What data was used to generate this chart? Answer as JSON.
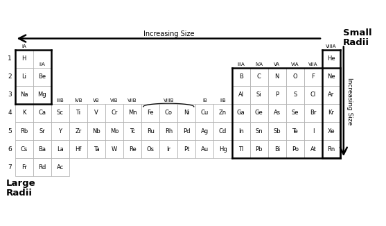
{
  "bg_color": "#ffffff",
  "cell_color": "#ffffff",
  "cell_border_color": "#aaaaaa",
  "text_color": "#000000",
  "fig_width": 5.57,
  "fig_height": 3.26,
  "rows": [
    {
      "row": 1,
      "elements": [
        {
          "sym": "H",
          "col": 1
        },
        {
          "sym": "He",
          "col": 18
        }
      ]
    },
    {
      "row": 2,
      "elements": [
        {
          "sym": "Li",
          "col": 1
        },
        {
          "sym": "Be",
          "col": 2
        },
        {
          "sym": "B",
          "col": 13
        },
        {
          "sym": "C",
          "col": 14
        },
        {
          "sym": "N",
          "col": 15
        },
        {
          "sym": "O",
          "col": 16
        },
        {
          "sym": "F",
          "col": 17
        },
        {
          "sym": "Ne",
          "col": 18
        }
      ]
    },
    {
      "row": 3,
      "elements": [
        {
          "sym": "Na",
          "col": 1
        },
        {
          "sym": "Mg",
          "col": 2
        },
        {
          "sym": "Al",
          "col": 13
        },
        {
          "sym": "Si",
          "col": 14
        },
        {
          "sym": "P",
          "col": 15
        },
        {
          "sym": "S",
          "col": 16
        },
        {
          "sym": "Cl",
          "col": 17
        },
        {
          "sym": "Ar",
          "col": 18
        }
      ]
    },
    {
      "row": 4,
      "elements": [
        {
          "sym": "K",
          "col": 1
        },
        {
          "sym": "Ca",
          "col": 2
        },
        {
          "sym": "Sc",
          "col": 3
        },
        {
          "sym": "Ti",
          "col": 4
        },
        {
          "sym": "V",
          "col": 5
        },
        {
          "sym": "Cr",
          "col": 6
        },
        {
          "sym": "Mn",
          "col": 7
        },
        {
          "sym": "Fe",
          "col": 8
        },
        {
          "sym": "Co",
          "col": 9
        },
        {
          "sym": "Ni",
          "col": 10
        },
        {
          "sym": "Cu",
          "col": 11
        },
        {
          "sym": "Zn",
          "col": 12
        },
        {
          "sym": "Ga",
          "col": 13
        },
        {
          "sym": "Ge",
          "col": 14
        },
        {
          "sym": "As",
          "col": 15
        },
        {
          "sym": "Se",
          "col": 16
        },
        {
          "sym": "Br",
          "col": 17
        },
        {
          "sym": "Kr",
          "col": 18
        }
      ]
    },
    {
      "row": 5,
      "elements": [
        {
          "sym": "Rb",
          "col": 1
        },
        {
          "sym": "Sr",
          "col": 2
        },
        {
          "sym": "Y",
          "col": 3
        },
        {
          "sym": "Zr",
          "col": 4
        },
        {
          "sym": "Nb",
          "col": 5
        },
        {
          "sym": "Mo",
          "col": 6
        },
        {
          "sym": "Tc",
          "col": 7
        },
        {
          "sym": "Ru",
          "col": 8
        },
        {
          "sym": "Rh",
          "col": 9
        },
        {
          "sym": "Pd",
          "col": 10
        },
        {
          "sym": "Ag",
          "col": 11
        },
        {
          "sym": "Cd",
          "col": 12
        },
        {
          "sym": "In",
          "col": 13
        },
        {
          "sym": "Sn",
          "col": 14
        },
        {
          "sym": "Sb",
          "col": 15
        },
        {
          "sym": "Te",
          "col": 16
        },
        {
          "sym": "I",
          "col": 17
        },
        {
          "sym": "Xe",
          "col": 18
        }
      ]
    },
    {
      "row": 6,
      "elements": [
        {
          "sym": "Cs",
          "col": 1
        },
        {
          "sym": "Ba",
          "col": 2
        },
        {
          "sym": "La",
          "col": 3
        },
        {
          "sym": "Hf",
          "col": 4
        },
        {
          "sym": "Ta",
          "col": 5
        },
        {
          "sym": "W",
          "col": 6
        },
        {
          "sym": "Re",
          "col": 7
        },
        {
          "sym": "Os",
          "col": 8
        },
        {
          "sym": "Ir",
          "col": 9
        },
        {
          "sym": "Pt",
          "col": 10
        },
        {
          "sym": "Au",
          "col": 11
        },
        {
          "sym": "Hg",
          "col": 12
        },
        {
          "sym": "Tl",
          "col": 13
        },
        {
          "sym": "Pb",
          "col": 14
        },
        {
          "sym": "Bi",
          "col": 15
        },
        {
          "sym": "Po",
          "col": 16
        },
        {
          "sym": "At",
          "col": 17
        },
        {
          "sym": "Rn",
          "col": 18
        }
      ]
    },
    {
      "row": 7,
      "elements": [
        {
          "sym": "Fr",
          "col": 1
        },
        {
          "sym": "Rd",
          "col": 2
        },
        {
          "sym": "Ac",
          "col": 3
        }
      ]
    }
  ],
  "group_labels": [
    {
      "text": "IA",
      "col": 1,
      "above_row": 1
    },
    {
      "text": "IIA",
      "col": 2,
      "above_row": 2
    },
    {
      "text": "IIIB",
      "col": 3,
      "above_row": 4
    },
    {
      "text": "IVB",
      "col": 4,
      "above_row": 4
    },
    {
      "text": "VB",
      "col": 5,
      "above_row": 4
    },
    {
      "text": "VIB",
      "col": 6,
      "above_row": 4
    },
    {
      "text": "VIIB",
      "col": 7,
      "above_row": 4
    },
    {
      "text": "VIIIB",
      "col": 9,
      "above_row": 4
    },
    {
      "text": "IB",
      "col": 11,
      "above_row": 4
    },
    {
      "text": "IIB",
      "col": 12,
      "above_row": 4
    },
    {
      "text": "IIIA",
      "col": 13,
      "above_row": 2
    },
    {
      "text": "IVA",
      "col": 14,
      "above_row": 2
    },
    {
      "text": "VA",
      "col": 15,
      "above_row": 2
    },
    {
      "text": "VIA",
      "col": 16,
      "above_row": 2
    },
    {
      "text": "VIIA",
      "col": 17,
      "above_row": 2
    },
    {
      "text": "VIIIA",
      "col": 18,
      "above_row": 1
    }
  ],
  "row_numbers": [
    1,
    2,
    3,
    4,
    5,
    6,
    7
  ],
  "left_box": {
    "rows": [
      1,
      2,
      3
    ],
    "cols": [
      1,
      2
    ]
  },
  "right_box": {
    "rows": [
      2,
      3,
      4,
      5,
      6
    ],
    "cols": [
      13,
      14,
      15,
      16,
      17,
      18
    ]
  },
  "noble_box": {
    "rows": [
      1,
      2,
      3,
      4,
      5,
      6
    ],
    "col": 18
  }
}
